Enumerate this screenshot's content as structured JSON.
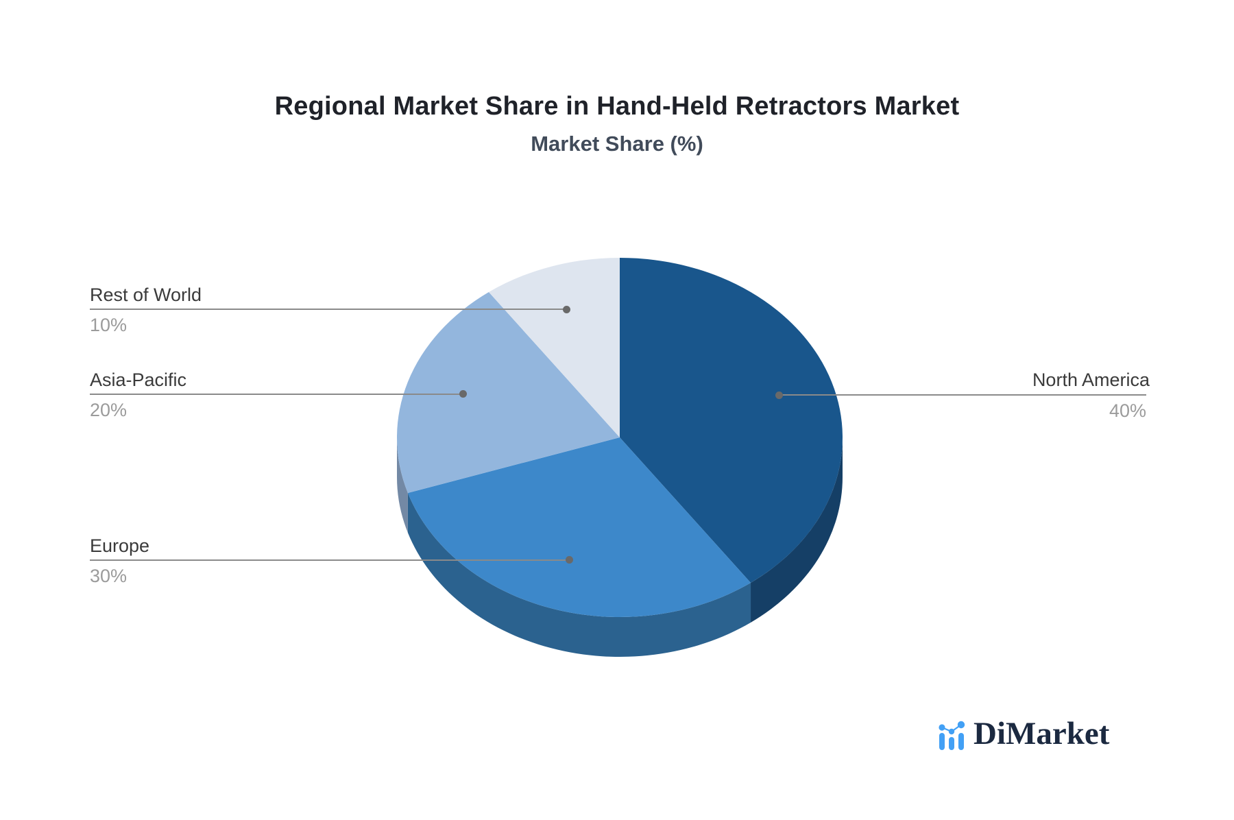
{
  "title": "Regional Market Share in Hand-Held Retractors Market",
  "subtitle": "Market Share (%)",
  "chart_data": {
    "type": "pie",
    "style": "3d",
    "title": "Regional Market Share in Hand-Held Retractors Market",
    "subtitle": "Market Share (%)",
    "unit": "%",
    "direction": "clockwise",
    "start_angle_deg": 0,
    "legend_position": "callout-labels",
    "slices": [
      {
        "label": "North America",
        "value": 40,
        "color": "#19568C",
        "side_color": "#153F66"
      },
      {
        "label": "Europe",
        "value": 30,
        "color": "#3D88CA",
        "side_color": "#2B628F"
      },
      {
        "label": "Asia-Pacific",
        "value": 20,
        "color": "#93B6DD",
        "side_color": "#7389A5"
      },
      {
        "label": "Rest of World",
        "value": 10,
        "color": "#DEE5EF",
        "side_color": "#A6ACB5"
      }
    ]
  },
  "callouts": [
    {
      "label": "Rest of World",
      "percent": "10%"
    },
    {
      "label": "Asia-Pacific",
      "percent": "20%"
    },
    {
      "label": "Europe",
      "percent": "30%"
    },
    {
      "label": "North America",
      "percent": "40%"
    }
  ],
  "callout_style": {
    "line_color": "#8A8A8A",
    "dot_color": "#696969",
    "label_color": "#3A3A3A",
    "percent_color": "#9B9B9B"
  },
  "logo": {
    "text": "DiMarket",
    "icon": "bar-chart-logo-icon",
    "accent_color": "#42A0F5",
    "text_color": "#1B2940"
  }
}
